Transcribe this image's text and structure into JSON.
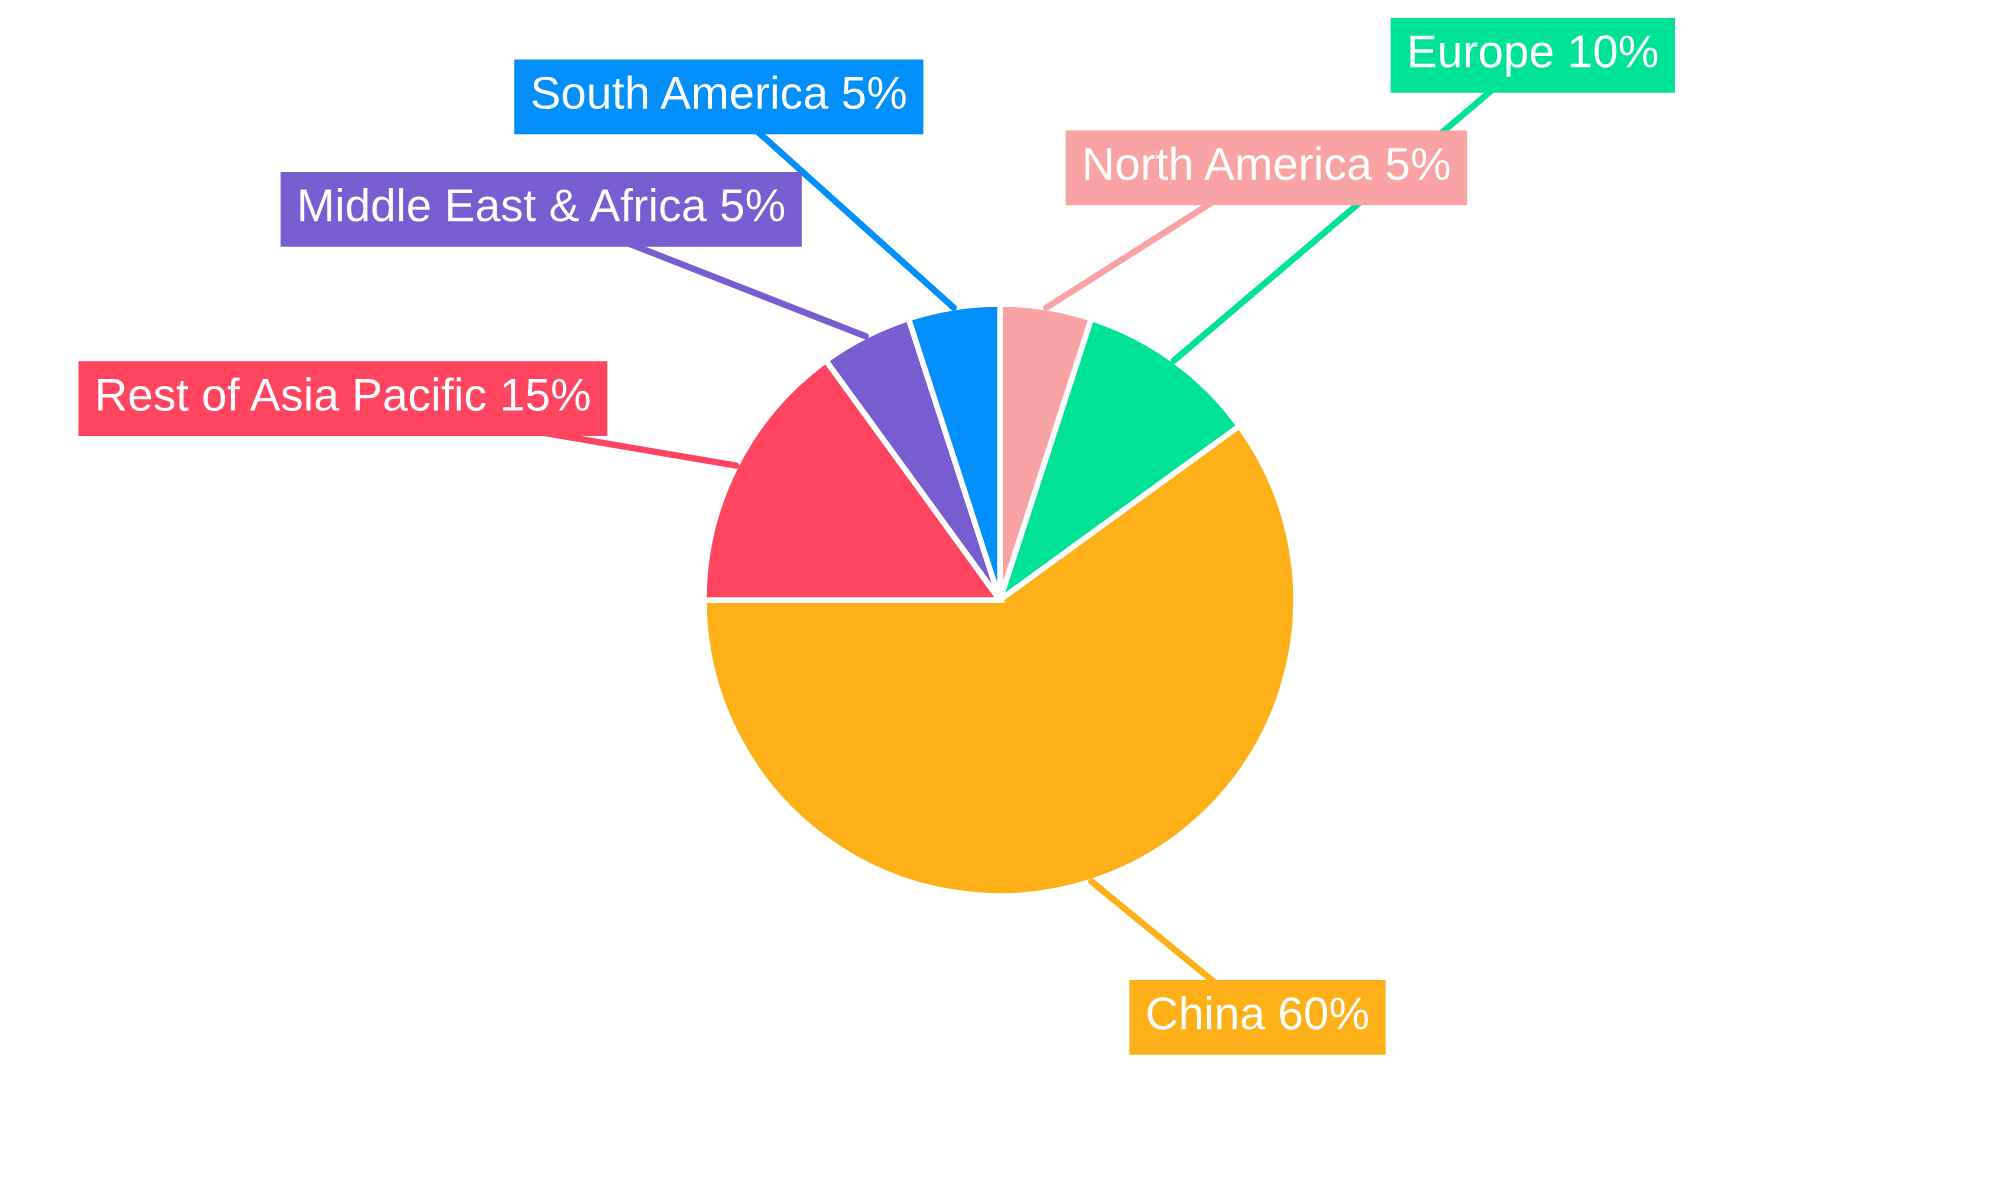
{
  "chart_data": {
    "type": "pie",
    "categories": [
      "North America",
      "Europe",
      "China",
      "Rest of Asia Pacific",
      "Middle East & Africa",
      "South America"
    ],
    "values": [
      5,
      10,
      60,
      15,
      5,
      5
    ],
    "colors": [
      "#f9a3a4",
      "#00e396",
      "#feb019",
      "#ff4560",
      "#775dd0",
      "#008ffb"
    ],
    "value_labels": [
      "5%",
      "10%",
      "60%",
      "15%",
      "5%",
      "5%"
    ]
  }
}
